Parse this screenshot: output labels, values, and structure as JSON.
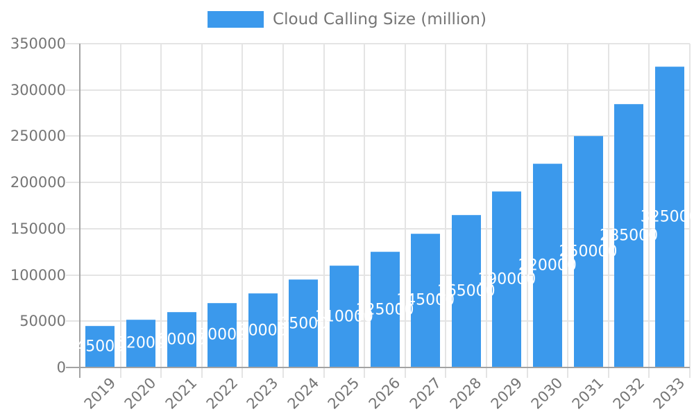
{
  "chart_data": {
    "type": "bar",
    "title": "",
    "legend": "Cloud Calling Size (million)",
    "legend_position": "top-center",
    "categories": [
      "2019",
      "2020",
      "2021",
      "2022",
      "2023",
      "2024",
      "2025",
      "2026",
      "2027",
      "2028",
      "2029",
      "2030",
      "2031",
      "2032",
      "2033"
    ],
    "series": [
      {
        "name": "Cloud Calling Size (million)",
        "values": [
          45000,
          52000,
          60000,
          70000,
          80000,
          95000,
          110000,
          125000,
          145000,
          165000,
          190000,
          220000,
          250000,
          285000,
          325000
        ]
      }
    ],
    "value_labels": {
      "visible": true,
      "position": "inside-middle",
      "color": "#FFFFFF"
    },
    "xlabel": "",
    "ylabel": "",
    "ylim": [
      0,
      350000
    ],
    "y_ticks": [
      0,
      50000,
      100000,
      150000,
      200000,
      250000,
      300000,
      350000
    ],
    "x_tick_rotation_deg": -45,
    "grid": "both",
    "colors": {
      "bar": "#3B99EC",
      "bar_top_edge": "#5FACF0",
      "value_label": "#FFFFFF",
      "axis_text": "#757575",
      "grid_line": "#E4E4E4",
      "axis_line": "#A3A3A3",
      "background": "#FFFFFF"
    }
  }
}
